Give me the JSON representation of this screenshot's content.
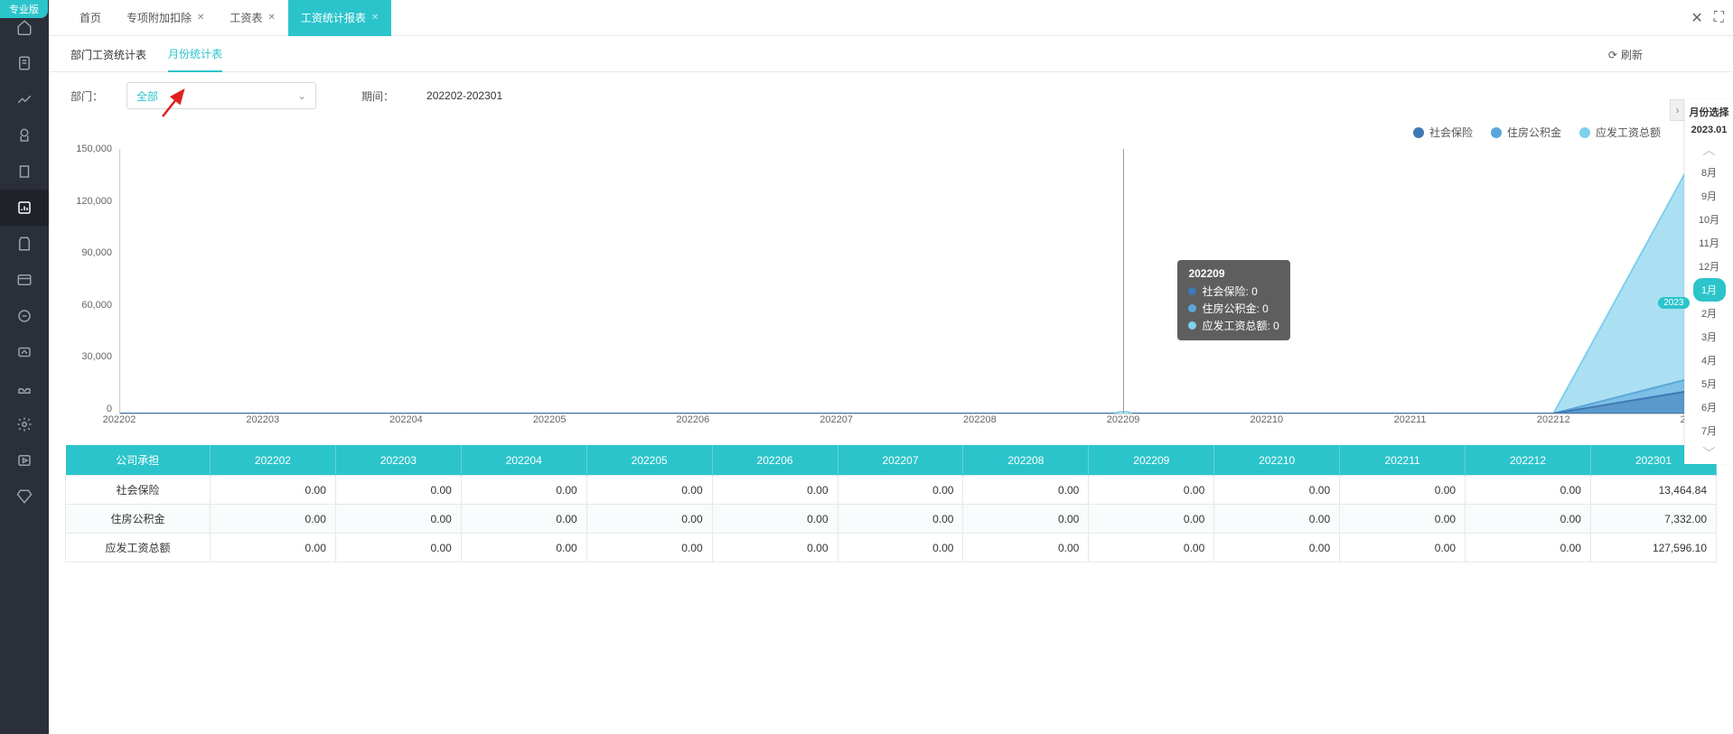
{
  "top_badge": "专业版",
  "sidebar": {
    "icons": [
      "home",
      "doc",
      "chart",
      "money",
      "building",
      "report-active",
      "invoice",
      "dashboard",
      "wallet",
      "download",
      "inbox",
      "settings",
      "media",
      "diamond"
    ]
  },
  "tabs": [
    {
      "label": "首页",
      "closable": false
    },
    {
      "label": "专项附加扣除",
      "closable": true
    },
    {
      "label": "工资表",
      "closable": true
    },
    {
      "label": "工资统计报表",
      "closable": true,
      "active": true
    }
  ],
  "sub_tabs": {
    "items": [
      "部门工资统计表",
      "月份统计表"
    ],
    "active_index": 1,
    "refresh_label": "刷新"
  },
  "filters": {
    "dept_label": "部门：",
    "dept_value": "全部",
    "period_label": "期间：",
    "period_value": "202202-202301"
  },
  "legend": [
    {
      "label": "社会保险",
      "color": "#3f79b5"
    },
    {
      "label": "住房公积金",
      "color": "#5aa6db"
    },
    {
      "label": "应发工资总额",
      "color": "#7ed0ed"
    }
  ],
  "chart": {
    "type": "area",
    "ylim": [
      0,
      150000
    ],
    "yticks": [
      150000,
      120000,
      90000,
      60000,
      30000,
      0
    ],
    "ytick_labels": [
      "150,000",
      "120,000",
      "90,000",
      "60,000",
      "30,000",
      "0"
    ],
    "categories": [
      "202202",
      "202203",
      "202204",
      "202205",
      "202206",
      "202207",
      "202208",
      "202209",
      "202210",
      "202211",
      "202212",
      "202301"
    ],
    "series": [
      {
        "name": "社会保险",
        "color": "#3f79b5",
        "fill": "rgba(63,121,181,0.55)",
        "values": [
          0,
          0,
          0,
          0,
          0,
          0,
          0,
          0,
          0,
          0,
          0,
          13464.84
        ]
      },
      {
        "name": "住房公积金",
        "color": "#5aa6db",
        "fill": "rgba(90,166,219,0.55)",
        "values": [
          0,
          0,
          0,
          0,
          0,
          0,
          0,
          0,
          0,
          0,
          0,
          20796.84
        ]
      },
      {
        "name": "应发工资总额",
        "color": "#7ed0ed",
        "fill": "rgba(126,208,237,0.65)",
        "values": [
          0,
          0,
          0,
          0,
          0,
          0,
          0,
          0,
          0,
          0,
          0,
          148392.94
        ]
      }
    ],
    "hover_index": 7,
    "tooltip": {
      "title": "202209",
      "rows": [
        {
          "label": "社会保险: 0",
          "color": "#3f79b5"
        },
        {
          "label": "住房公积金: 0",
          "color": "#5aa6db"
        },
        {
          "label": "应发工资总额: 0",
          "color": "#7ed0ed"
        }
      ]
    },
    "grid_color": "#cccccc",
    "background_color": "#ffffff"
  },
  "table": {
    "header_first": "公司承担",
    "columns": [
      "202202",
      "202203",
      "202204",
      "202205",
      "202206",
      "202207",
      "202208",
      "202209",
      "202210",
      "202211",
      "202212",
      "202301"
    ],
    "rows": [
      {
        "label": "社会保险",
        "cells": [
          "0.00",
          "0.00",
          "0.00",
          "0.00",
          "0.00",
          "0.00",
          "0.00",
          "0.00",
          "0.00",
          "0.00",
          "0.00",
          "13,464.84"
        ]
      },
      {
        "label": "住房公积金",
        "cells": [
          "0.00",
          "0.00",
          "0.00",
          "0.00",
          "0.00",
          "0.00",
          "0.00",
          "0.00",
          "0.00",
          "0.00",
          "0.00",
          "7,332.00"
        ]
      },
      {
        "label": "应发工资总额",
        "cells": [
          "0.00",
          "0.00",
          "0.00",
          "0.00",
          "0.00",
          "0.00",
          "0.00",
          "0.00",
          "0.00",
          "0.00",
          "0.00",
          "127,596.10"
        ]
      }
    ]
  },
  "month_panel": {
    "title": "月份选择",
    "head": "2023.01",
    "items": [
      "8月",
      "9月",
      "10月",
      "11月",
      "12月",
      "1月",
      "2月",
      "3月",
      "4月",
      "5月",
      "6月",
      "7月"
    ],
    "current_index": 5,
    "year_badge": "2023"
  }
}
